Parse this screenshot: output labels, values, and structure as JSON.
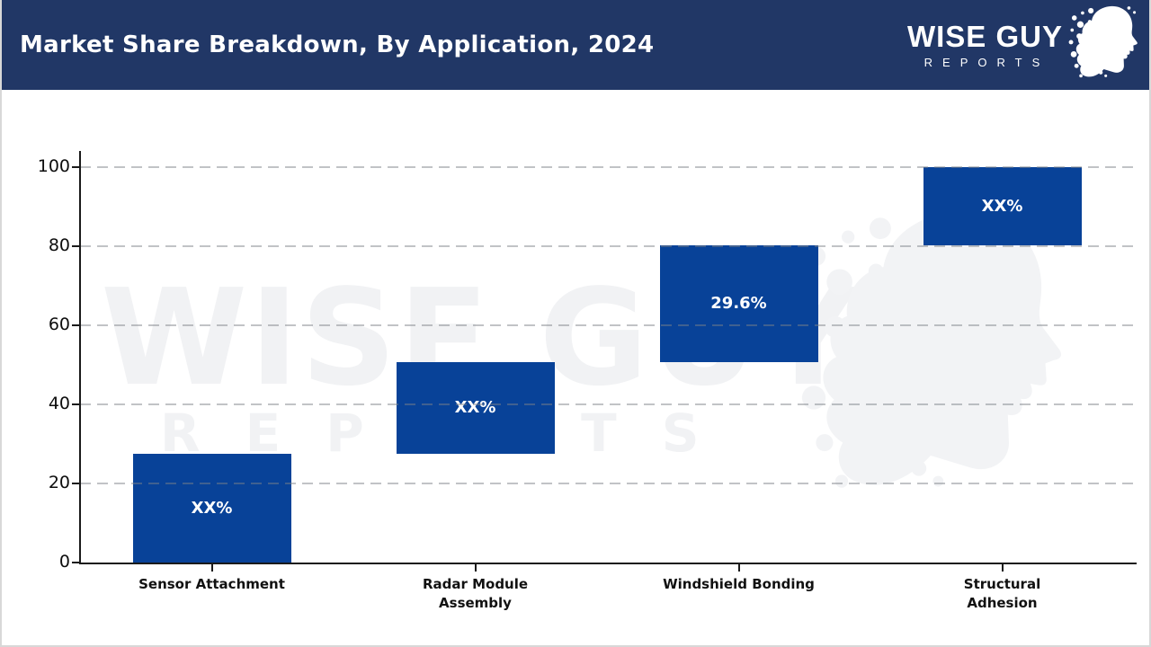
{
  "header": {
    "title": "Market Share Breakdown, By Application, 2024",
    "logo": {
      "line1": "WISE GUY",
      "line2": "REPORTS"
    }
  },
  "watermark": {
    "line1": "WISE GUY",
    "line2": "REPORTS"
  },
  "colors": {
    "header_background": "#213766",
    "bar_blue": "#084298",
    "bar_label_white": "#ffffff",
    "axis_black": "#1a1a1a",
    "watermark_gray": "#f1f2f4"
  },
  "chart_data": {
    "type": "bar",
    "subtype": "waterfall-stacked-segments",
    "title": "Market Share Breakdown, By Application, 2024",
    "categories": [
      "Sensor Attachment",
      "Radar Module Assembly",
      "Windshield Bonding",
      "Structural Adhesion"
    ],
    "category_label_lines": [
      [
        "Sensor Attachment"
      ],
      [
        "Radar Module",
        "Assembly"
      ],
      [
        "Windshield Bonding"
      ],
      [
        "Structural",
        "Adhesion"
      ]
    ],
    "segments": [
      {
        "category": "Sensor Attachment",
        "start": 0,
        "end": 27.5,
        "value": 27.5,
        "value_label": "XX%"
      },
      {
        "category": "Radar Module Assembly",
        "start": 27.5,
        "end": 50.7,
        "value": 23.2,
        "value_label": "XX%"
      },
      {
        "category": "Windshield Bonding",
        "start": 50.7,
        "end": 80.3,
        "value": 29.6,
        "value_label": "29.6%"
      },
      {
        "category": "Structural Adhesion",
        "start": 80.3,
        "end": 100,
        "value": 19.7,
        "value_label": "XX%"
      }
    ],
    "yticks": [
      0,
      20,
      40,
      60,
      80,
      100
    ],
    "ylim": [
      0,
      104
    ],
    "xlabel": "",
    "ylabel": "",
    "grid": "horizontal-dashed",
    "legend": "none",
    "bar_color": "#084298",
    "bar_label_color": "#ffffff"
  }
}
